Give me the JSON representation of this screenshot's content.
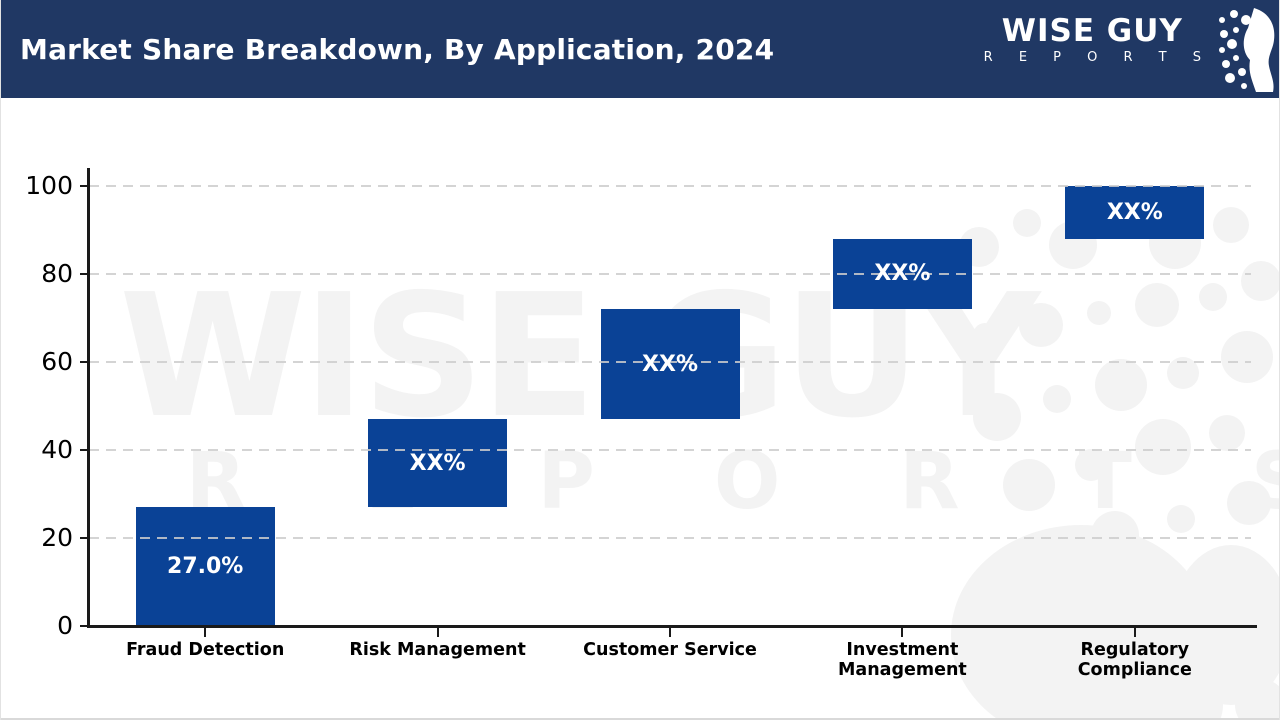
{
  "page": {
    "header": {
      "title": "Market Share Breakdown, By Application, 2024",
      "logo": {
        "name": "WISE GUY",
        "sub": "R E P O R T S"
      }
    },
    "watermark": {
      "name": "WISE GUY",
      "sub": "R E P O R T S"
    },
    "colors": {
      "header_bg": "#203864",
      "bar": "#0a4296",
      "bar_label": "#ffffff",
      "grid": "#cdcdcd",
      "axis": "#1a1a1a",
      "watermark": "#f3f3f3"
    }
  },
  "chart_data": {
    "type": "bar",
    "subtype": "waterfall",
    "title": "Market Share Breakdown, By Application, 2024",
    "categories": [
      "Fraud Detection",
      "Risk Management",
      "Customer Service",
      "Investment Management",
      "Regulatory Compliance"
    ],
    "bars": [
      {
        "category": "Fraud Detection",
        "start": 0,
        "end": 27,
        "label": "27.0%"
      },
      {
        "category": "Risk Management",
        "start": 27,
        "end": 47,
        "label": "XX%"
      },
      {
        "category": "Customer Service",
        "start": 47,
        "end": 72,
        "label": "XX%"
      },
      {
        "category": "Investment Management",
        "start": 72,
        "end": 88,
        "label": "XX%"
      },
      {
        "category": "Regulatory Compliance",
        "start": 88,
        "end": 100,
        "label": "XX%"
      }
    ],
    "xlabel": "",
    "ylabel": "",
    "ylim": [
      0,
      105
    ],
    "yticks": [
      0,
      20,
      40,
      60,
      80,
      100
    ],
    "grid": "horizontal-dashed-over-bars",
    "legend": "none"
  }
}
